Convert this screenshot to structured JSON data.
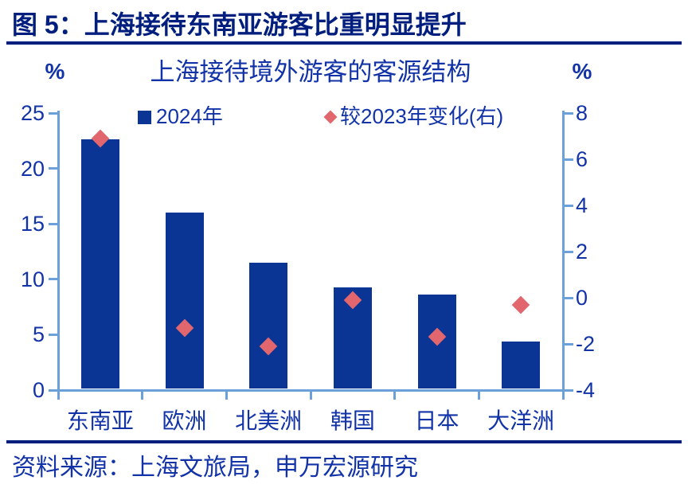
{
  "figure": {
    "label": "图 5：上海接待东南亚游客比重明显提升",
    "source": "资料来源：上海文旅局，申万宏源研究"
  },
  "chart_data": {
    "type": "bar",
    "title": "上海接待境外游客的客源结构",
    "categories": [
      "东南亚",
      "欧洲",
      "北美洲",
      "韩国",
      "日本",
      "大洋洲"
    ],
    "series": [
      {
        "name": "2024年",
        "type": "bar",
        "axis": "left",
        "color": "#0b3594",
        "values": [
          22.6,
          16.0,
          11.5,
          9.3,
          8.6,
          4.4
        ]
      },
      {
        "name": "较2023年变化(右)",
        "type": "scatter",
        "marker": "diamond",
        "axis": "right",
        "color": "#e1666d",
        "values": [
          6.9,
          -1.3,
          -2.1,
          -0.1,
          -1.7,
          -0.3
        ]
      }
    ],
    "left_axis": {
      "unit": "%",
      "min": 0,
      "max": 25,
      "ticks": [
        0,
        5,
        10,
        15,
        20,
        25
      ]
    },
    "right_axis": {
      "unit": "%",
      "min": -4,
      "max": 8,
      "ticks": [
        -4,
        -2,
        0,
        2,
        4,
        6,
        8
      ]
    },
    "legend_position": "top",
    "grid": false,
    "colors": {
      "title_navy": "#001e7d",
      "text_blue": "#1233a8",
      "bar_blue": "#0b3594",
      "marker_red": "#e1666d",
      "axis_light_blue": "#6ba0d8"
    }
  }
}
